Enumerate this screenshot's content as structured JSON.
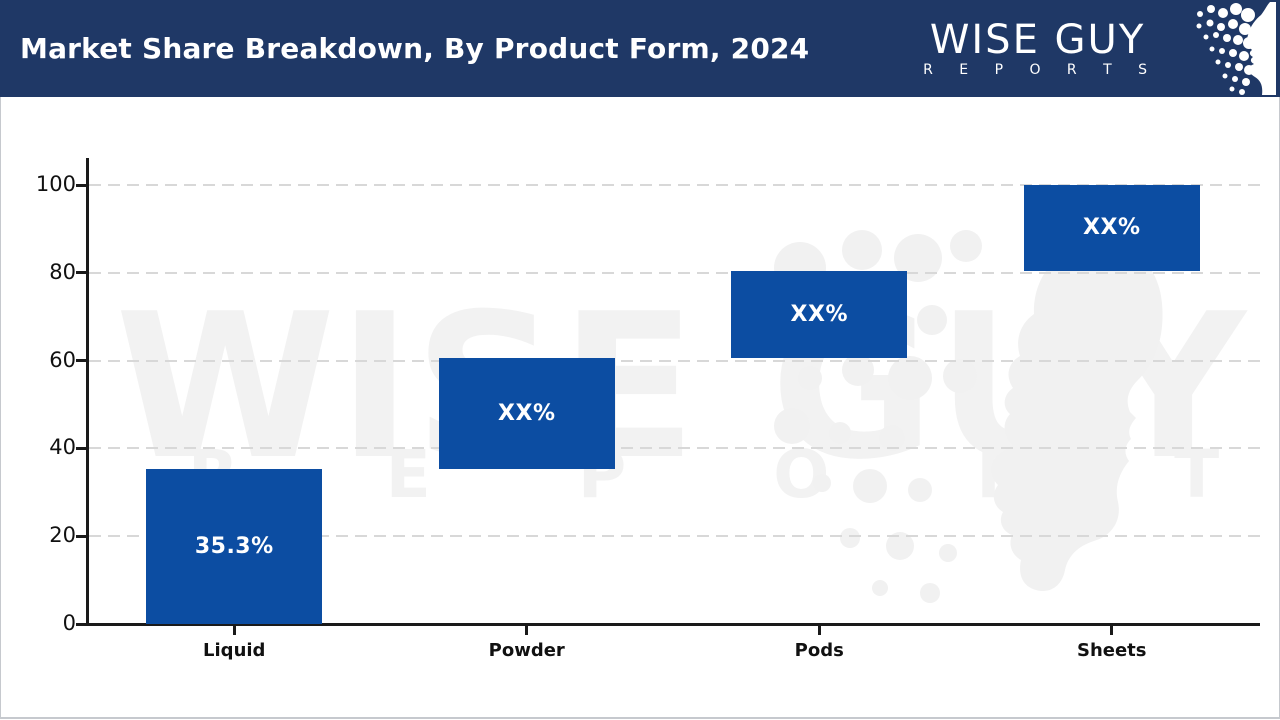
{
  "header": {
    "title": "Market Share Breakdown, By Product Form, 2024",
    "logo": {
      "wise_guy": "WISE GUY",
      "reports": "R E P O R T S"
    }
  },
  "watermark": {
    "wise_guy": "WISE GUY",
    "reports": "R E P O R T S"
  },
  "chart_data": {
    "type": "bar",
    "subtype": "waterfall",
    "title": "Market Share Breakdown, By Product Form, 2024",
    "categories": [
      "Liquid",
      "Powder",
      "Pods",
      "Sheets"
    ],
    "segments": [
      {
        "category": "Liquid",
        "start": 0,
        "end": 35.3,
        "label": "35.3%"
      },
      {
        "category": "Powder",
        "start": 35.3,
        "end": 60.5,
        "label": "XX%"
      },
      {
        "category": "Pods",
        "start": 60.5,
        "end": 80.5,
        "label": "XX%"
      },
      {
        "category": "Sheets",
        "start": 80.5,
        "end": 100,
        "label": "XX%"
      }
    ],
    "ylim": [
      0,
      100
    ],
    "yticks": [
      0,
      20,
      40,
      60,
      80,
      100
    ],
    "xlabel": "",
    "ylabel": "",
    "grid": "horizontal-dashed",
    "legend": "none",
    "bar_color": "#0C4DA2",
    "bar_label_color": "#FFFFFF",
    "header_color": "#1F3866"
  }
}
